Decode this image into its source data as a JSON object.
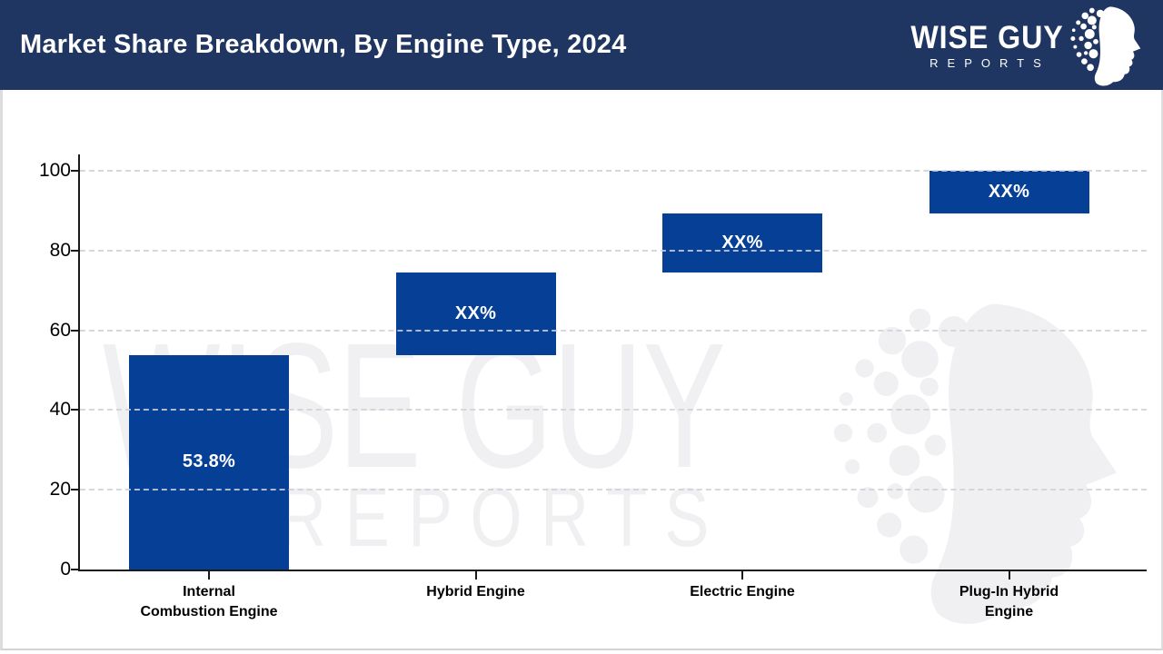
{
  "header": {
    "title": "Market Share Breakdown, By Engine Type, 2024",
    "logo": {
      "name": "WISE GUY",
      "sub": "REPORTS"
    }
  },
  "watermark": {
    "name": "WISE GUY",
    "sub": "R E P O R T S"
  },
  "chart_data": {
    "type": "bar",
    "subtype": "waterfall",
    "title": "Market Share Breakdown, By Engine Type, 2024",
    "categories": [
      "Internal\nCombustion Engine",
      "Hybrid Engine",
      "Electric Engine",
      "Plug-In Hybrid\nEngine"
    ],
    "series": [
      {
        "name": "Internal Combustion Engine",
        "start": 0,
        "end": 53.8,
        "label": "53.8%"
      },
      {
        "name": "Hybrid Engine",
        "start": 53.8,
        "end": 74.6,
        "label": "XX%"
      },
      {
        "name": "Electric Engine",
        "start": 74.6,
        "end": 89.2,
        "label": "XX%"
      },
      {
        "name": "Plug-In Hybrid Engine",
        "start": 89.2,
        "end": 100,
        "label": "XX%"
      }
    ],
    "y_ticks": [
      0,
      20,
      40,
      60,
      80,
      100
    ],
    "ylim": [
      0,
      104
    ],
    "xlabel": "",
    "ylabel": "",
    "grid": true,
    "grid_style": "dashed",
    "legend": "none",
    "bar_color": "#053f96",
    "bar_label_color": "#ffffff",
    "axis_color": "#1a1a1a",
    "header_bg": "#1f3562",
    "watermark_color": "#f0f0f2"
  }
}
